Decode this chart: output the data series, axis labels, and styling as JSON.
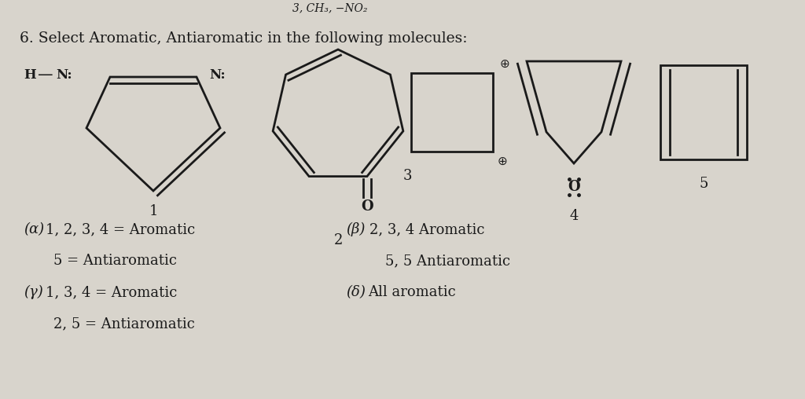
{
  "background_color": "#d8d4cc",
  "title": "6. Select Aromatic, Antiaromatic in the following molecules:",
  "title_fontsize": 13.5,
  "text_color": "#1a1a1a",
  "answer_a1": "(a) 1, 2, 3, 4 = Aromatic",
  "answer_a2": "5 = Antiaromatic",
  "answer_b1": "(b) 2, 3, 4 Aromatic",
  "answer_b2": "5, 5 Antiaromatic",
  "answer_c1": "(c) 1, 3, 4 = Aromatic",
  "answer_c2": "2, 5 = Antiaromatic",
  "answer_d1": "(d) All aromatic"
}
